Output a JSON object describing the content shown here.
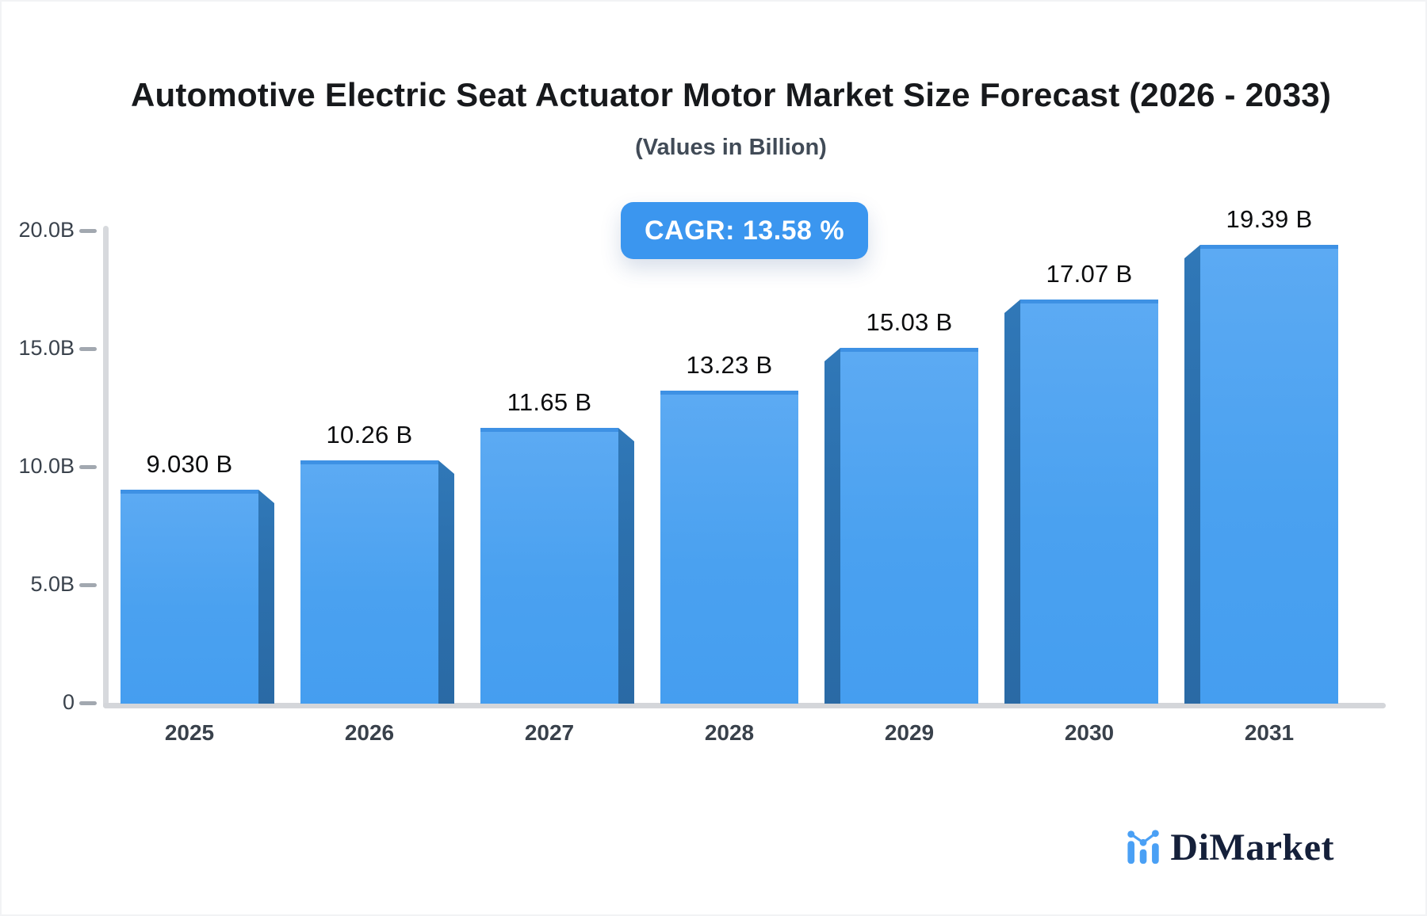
{
  "header": {
    "title": "Automotive Electric Seat Actuator Motor Market Size Forecast (2026 - 2033)",
    "subtitle": "(Values in Billion)",
    "cagr_badge": "CAGR: 13.58 %"
  },
  "logo": {
    "text": "DiMarket",
    "icon": "bar-chart-logo-icon",
    "icon_color": "#4aa0f5",
    "text_color": "#15203a"
  },
  "colors": {
    "badge_bg": "#3b96ef",
    "bar_face": "#4aa1f0",
    "bar_face_top_edge": "#3e91e4",
    "bar_side": "#2d72b0",
    "axis_line": "#d5d7db",
    "tick_dash": "#a2a8b0",
    "axis_text": "#3a424c",
    "value_text": "#0c0d0f"
  },
  "chart_data": {
    "type": "bar",
    "title": "Automotive Electric Seat Actuator Motor Market Size Forecast (2026 - 2033)",
    "subtitle": "(Values in Billion)",
    "categories": [
      "2025",
      "2026",
      "2027",
      "2028",
      "2029",
      "2030",
      "2031"
    ],
    "values": [
      9.03,
      10.26,
      11.65,
      13.23,
      15.03,
      17.07,
      19.39
    ],
    "value_labels": [
      "9.030 B",
      "10.26 B",
      "11.65 B",
      "13.23 B",
      "15.03 B",
      "17.07 B",
      "19.39 B"
    ],
    "xlabel": "",
    "ylabel": "",
    "ylim": [
      0,
      20
    ],
    "yticks": [
      {
        "v": 0,
        "label": "0"
      },
      {
        "v": 5,
        "label": "5.0B"
      },
      {
        "v": 10,
        "label": "10.0B"
      },
      {
        "v": 15,
        "label": "15.0B"
      },
      {
        "v": 20,
        "label": "20.0B"
      }
    ],
    "grid": false,
    "legend": false,
    "style": "3d-bars, perspective toward center; left bars shaded on right face, right bars shaded on left face"
  }
}
